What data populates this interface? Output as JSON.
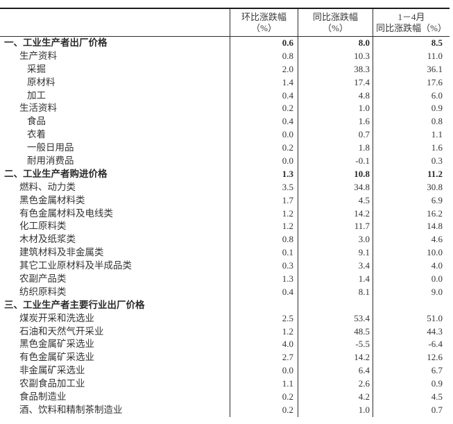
{
  "table": {
    "title_semantic": "工业生产者价格指数表",
    "columns": [
      {
        "line1": "环比涨跌幅",
        "line2": "（%）"
      },
      {
        "line1": "同比涨跌幅",
        "line2": "（%）"
      },
      {
        "line1": "1－4月",
        "line2": "同比涨跌幅（%）"
      }
    ],
    "rows": [
      {
        "label": "一、工业生产者出厂价格",
        "level": 0,
        "bold": true,
        "values": [
          "0.6",
          "8.0",
          "8.5"
        ]
      },
      {
        "label": "生产资料",
        "level": 1,
        "bold": false,
        "values": [
          "0.8",
          "10.3",
          "11.0"
        ]
      },
      {
        "label": "采掘",
        "level": 2,
        "bold": false,
        "values": [
          "2.0",
          "38.3",
          "36.1"
        ]
      },
      {
        "label": "原材料",
        "level": 2,
        "bold": false,
        "values": [
          "1.4",
          "17.4",
          "17.6"
        ]
      },
      {
        "label": "加工",
        "level": 2,
        "bold": false,
        "values": [
          "0.4",
          "4.8",
          "6.0"
        ]
      },
      {
        "label": "生活资料",
        "level": 1,
        "bold": false,
        "values": [
          "0.2",
          "1.0",
          "0.9"
        ]
      },
      {
        "label": "食品",
        "level": 2,
        "bold": false,
        "values": [
          "0.4",
          "1.6",
          "0.8"
        ]
      },
      {
        "label": "衣着",
        "level": 2,
        "bold": false,
        "values": [
          "0.0",
          "0.7",
          "1.1"
        ]
      },
      {
        "label": "一般日用品",
        "level": 2,
        "bold": false,
        "values": [
          "0.2",
          "1.8",
          "1.6"
        ]
      },
      {
        "label": "耐用消费品",
        "level": 2,
        "bold": false,
        "values": [
          "0.0",
          "-0.1",
          "0.3"
        ]
      },
      {
        "label": "二、工业生产者购进价格",
        "level": 0,
        "bold": true,
        "values": [
          "1.3",
          "10.8",
          "11.2"
        ]
      },
      {
        "label": "燃料、动力类",
        "level": 1,
        "bold": false,
        "values": [
          "3.5",
          "34.8",
          "30.8"
        ]
      },
      {
        "label": "黑色金属材料类",
        "level": 1,
        "bold": false,
        "values": [
          "1.7",
          "4.5",
          "6.9"
        ]
      },
      {
        "label": "有色金属材料及电线类",
        "level": 1,
        "bold": false,
        "values": [
          "1.2",
          "14.2",
          "16.2"
        ]
      },
      {
        "label": "化工原料类",
        "level": 1,
        "bold": false,
        "values": [
          "1.2",
          "11.7",
          "14.8"
        ]
      },
      {
        "label": "木材及纸浆类",
        "level": 1,
        "bold": false,
        "values": [
          "0.8",
          "3.0",
          "4.6"
        ]
      },
      {
        "label": "建筑材料及非金属类",
        "level": 1,
        "bold": false,
        "values": [
          "0.1",
          "9.1",
          "10.0"
        ]
      },
      {
        "label": "其它工业原材料及半成品类",
        "level": 1,
        "bold": false,
        "values": [
          "0.3",
          "3.4",
          "4.0"
        ]
      },
      {
        "label": "农副产品类",
        "level": 1,
        "bold": false,
        "values": [
          "1.3",
          "1.4",
          "0.0"
        ]
      },
      {
        "label": "纺织原料类",
        "level": 1,
        "bold": false,
        "values": [
          "0.4",
          "8.1",
          "9.0"
        ]
      },
      {
        "label": "三、工业生产者主要行业出厂价格",
        "level": 0,
        "bold": true,
        "values": [
          "",
          "",
          ""
        ]
      },
      {
        "label": "煤炭开采和洗选业",
        "level": 1,
        "bold": false,
        "values": [
          "2.5",
          "53.4",
          "51.0"
        ]
      },
      {
        "label": "石油和天然气开采业",
        "level": 1,
        "bold": false,
        "values": [
          "1.2",
          "48.5",
          "44.3"
        ]
      },
      {
        "label": "黑色金属矿采选业",
        "level": 1,
        "bold": false,
        "values": [
          "4.0",
          "-5.5",
          "-6.4"
        ]
      },
      {
        "label": "有色金属矿采选业",
        "level": 1,
        "bold": false,
        "values": [
          "2.7",
          "14.2",
          "12.6"
        ]
      },
      {
        "label": "非金属矿采选业",
        "level": 1,
        "bold": false,
        "values": [
          "0.0",
          "6.4",
          "6.7"
        ]
      },
      {
        "label": "农副食品加工业",
        "level": 1,
        "bold": false,
        "values": [
          "1.1",
          "2.6",
          "0.9"
        ]
      },
      {
        "label": "食品制造业",
        "level": 1,
        "bold": false,
        "values": [
          "0.2",
          "4.2",
          "4.5"
        ]
      },
      {
        "label": "酒、饮料和精制茶制造业",
        "level": 1,
        "bold": false,
        "values": [
          "0.2",
          "1.0",
          "0.7"
        ]
      }
    ]
  }
}
